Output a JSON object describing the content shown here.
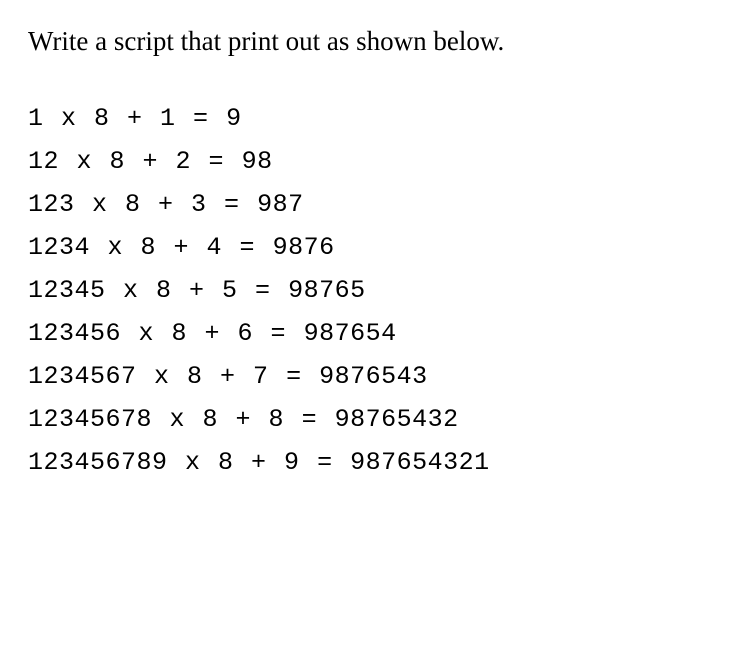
{
  "instruction": "Write a script that print out as shown below.",
  "code": {
    "type": "arithmetic-pattern",
    "font_family": "Courier New",
    "font_size_pt": 19,
    "text_color": "#000000",
    "background_color": "#ffffff",
    "lines": [
      {
        "left": "1",
        "op": "x 8 + 1 =",
        "result": "9"
      },
      {
        "left": "12",
        "op": "x 8 + 2 =",
        "result": "98"
      },
      {
        "left": "123",
        "op": "x 8 + 3 =",
        "result": "987"
      },
      {
        "left": "1234",
        "op": "x 8 + 4 =",
        "result": "9876"
      },
      {
        "left": "12345",
        "op": "x 8 + 5 =",
        "result": "98765"
      },
      {
        "left": "123456",
        "op": "x 8 + 6 =",
        "result": "987654"
      },
      {
        "left": "1234567",
        "op": "x 8 + 7 =",
        "result": "9876543"
      },
      {
        "left": "12345678",
        "op": "x 8 + 8 =",
        "result": "98765432"
      },
      {
        "left": "123456789",
        "op": "x 8 + 9 =",
        "result": "987654321"
      }
    ]
  },
  "typography": {
    "instruction_font_family": "Times New Roman",
    "instruction_font_size_pt": 20,
    "instruction_font_weight": 400
  }
}
